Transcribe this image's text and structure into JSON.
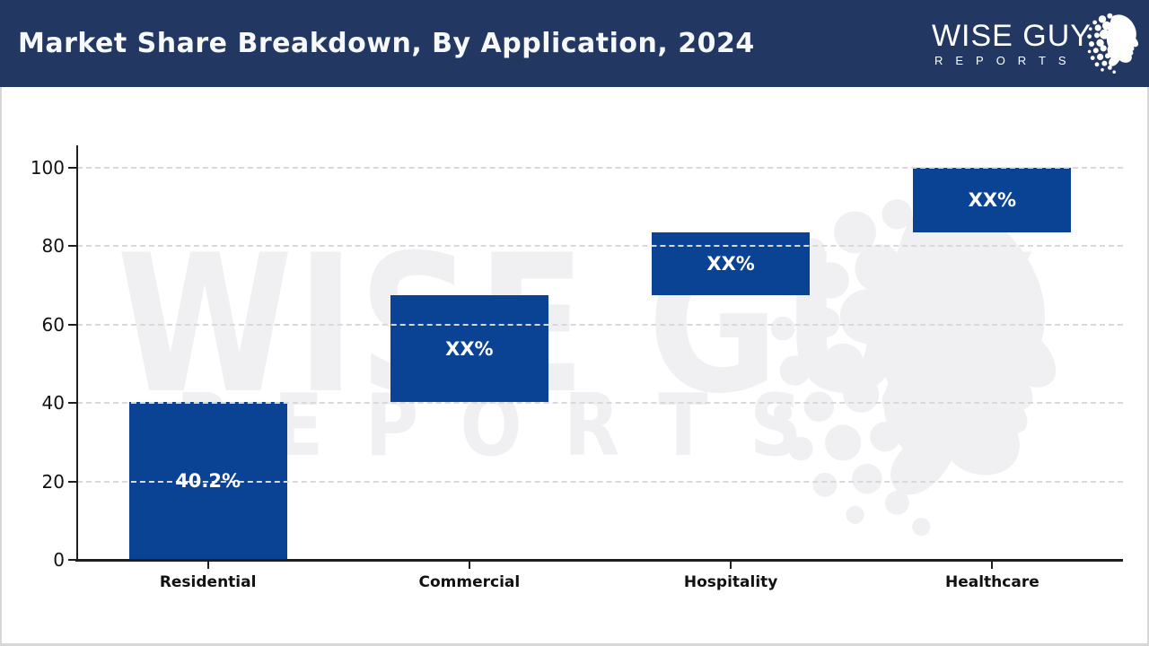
{
  "header": {
    "title": "Market Share Breakdown, By Application, 2024",
    "logo": {
      "line1": "WISE GUY",
      "line2": "REPORTS"
    }
  },
  "watermark": {
    "line1": "WISE GUY",
    "line2": "REPORTS"
  },
  "colors": {
    "header_bg": "#223862",
    "bar": "#0a4294",
    "bar_label": "#ffffff",
    "axis": "#1e1e1e",
    "grid": "#d9d9d9",
    "tick_label": "#111111",
    "watermark": "#f0f0f2",
    "background": "#ffffff",
    "frame_border": "#d7d7d7"
  },
  "chart_data": {
    "type": "bar",
    "subtype": "waterfall-breakdown",
    "title": "Market Share Breakdown, By Application, 2024",
    "categories": [
      "Residential",
      "Commercial",
      "Hospitality",
      "Healthcare"
    ],
    "segments": [
      {
        "category": "Residential",
        "start": 0,
        "end": 40.2,
        "label": "40.2%"
      },
      {
        "category": "Commercial",
        "start": 40.2,
        "end": 67.5,
        "label": "XX%"
      },
      {
        "category": "Hospitality",
        "start": 67.5,
        "end": 83.5,
        "label": "XX%"
      },
      {
        "category": "Healthcare",
        "start": 83.5,
        "end": 100,
        "label": "XX%"
      }
    ],
    "ylim": [
      0,
      100
    ],
    "yticks": [
      0,
      20,
      40,
      60,
      80,
      100
    ],
    "xlabel": "",
    "ylabel": "",
    "grid": "horizontal dashed",
    "legend": "none",
    "bar_color": "#0a4294",
    "value_label_color": "#ffffff"
  }
}
